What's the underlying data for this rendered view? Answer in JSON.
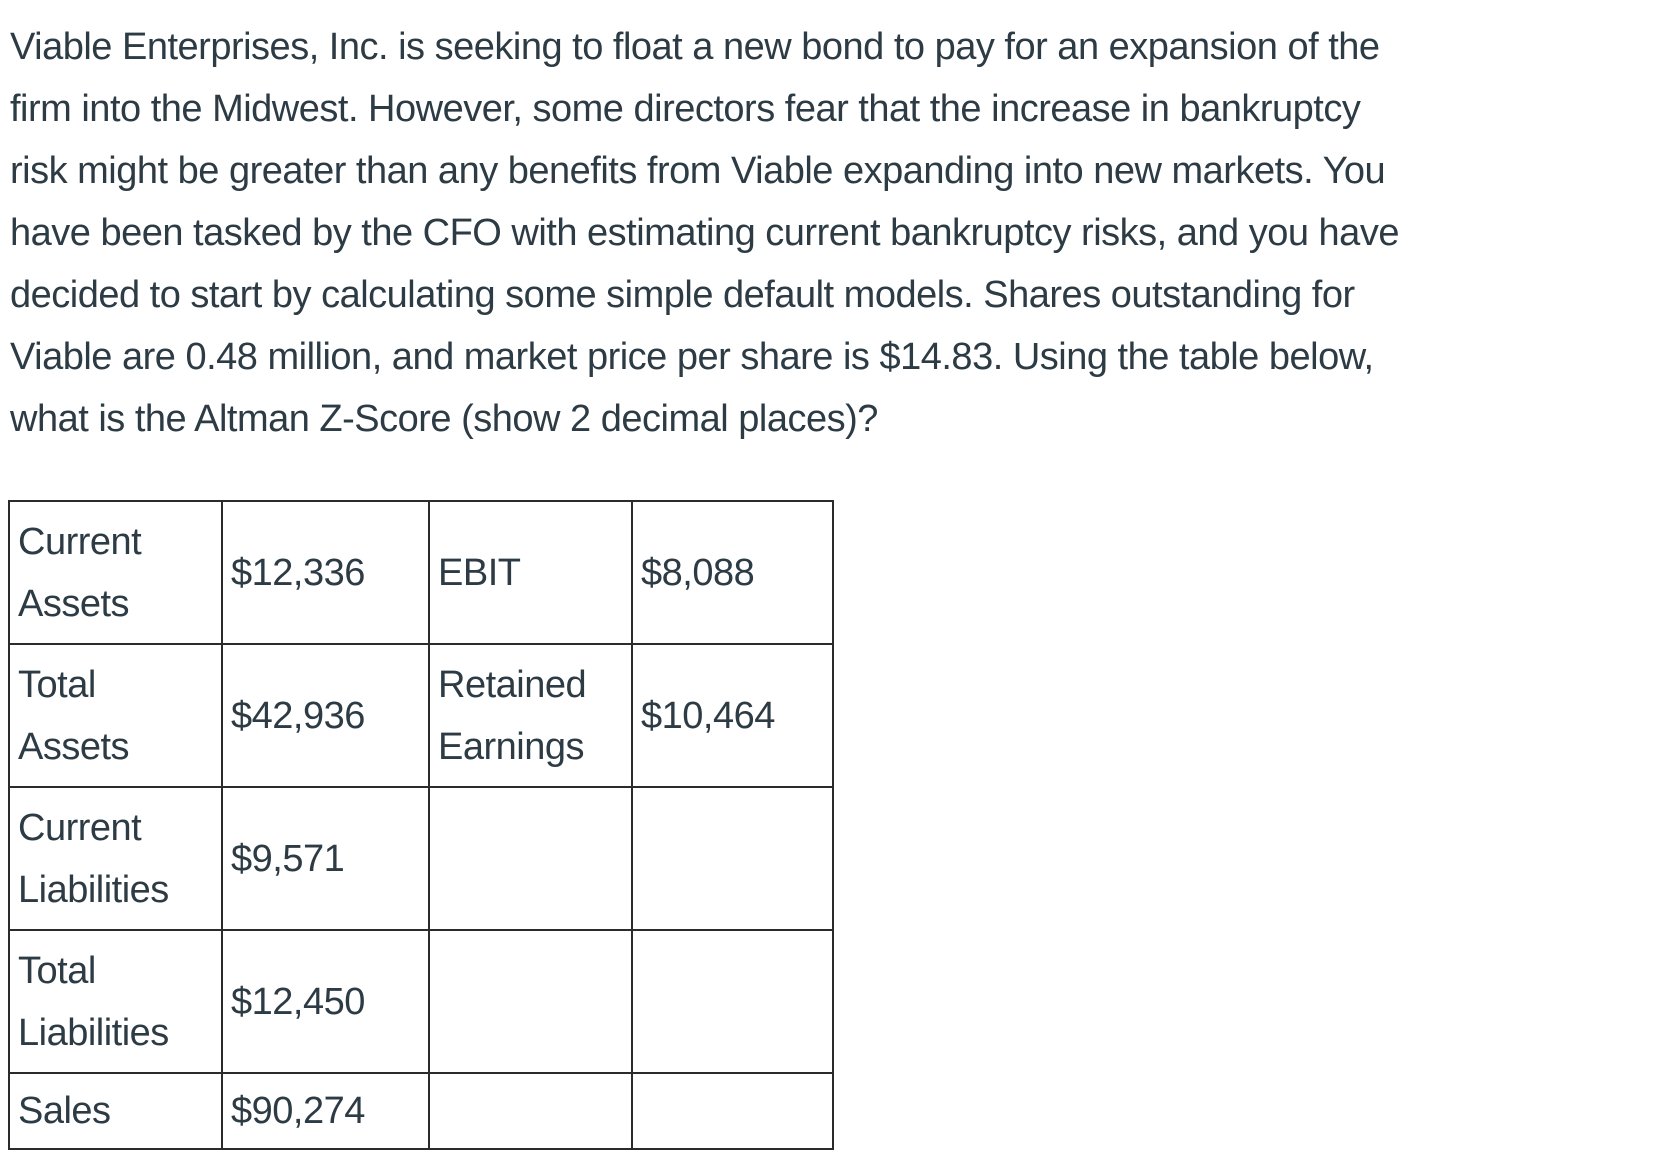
{
  "colors": {
    "text": "#2d3b45",
    "border": "#2b2b2b",
    "background": "#ffffff"
  },
  "question": {
    "lines": [
      "Viable Enterprises, Inc. is seeking to float a new bond to pay for an expansion of the",
      "firm into the Midwest. However, some directors fear that the increase in bankruptcy",
      "risk might be greater than any benefits from Viable expanding into new markets. You",
      "have been tasked by the CFO with estimating current bankruptcy risks, and you have",
      "decided to start by calculating some simple default models. Shares outstanding for",
      "Viable are 0.48 million, and market price per share is $14.83. Using the table below,",
      "what is the Altman Z-Score (show 2 decimal places)?"
    ]
  },
  "table": {
    "rows": [
      {
        "cells": [
          "Current Assets",
          "$12,336",
          "EBIT",
          "$8,088"
        ]
      },
      {
        "cells": [
          "Total Assets",
          "$42,936",
          "Retained Earnings",
          "$10,464"
        ]
      },
      {
        "cells": [
          "Current Liabilities",
          "$9,571",
          "",
          ""
        ]
      },
      {
        "cells": [
          "Total Liabilities",
          "$12,450",
          "",
          ""
        ]
      },
      {
        "cells": [
          "Sales",
          "$90,274",
          "",
          ""
        ]
      }
    ]
  }
}
